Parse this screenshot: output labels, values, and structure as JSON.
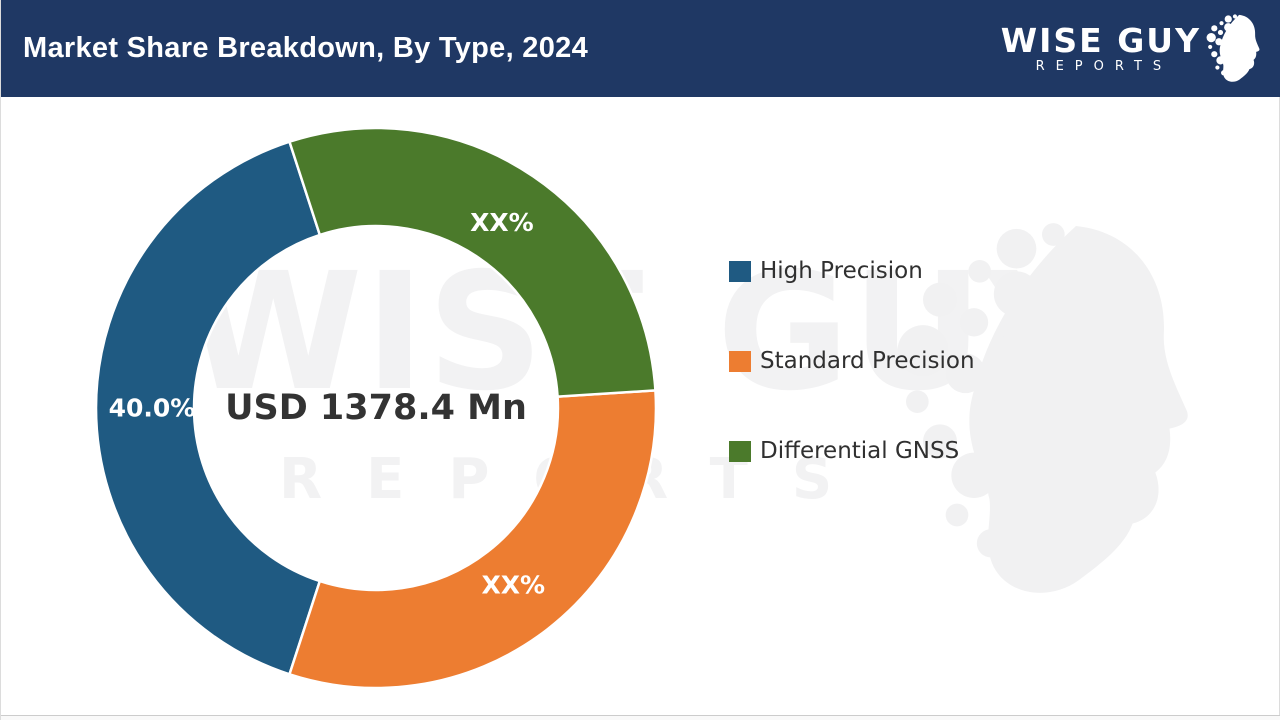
{
  "header": {
    "title": "Market Share Breakdown, By Type, 2024",
    "bg_color": "#1f3864",
    "logo": {
      "line1": "WISE GUY",
      "line2": "REPORTS"
    }
  },
  "watermark": {
    "line1": "WISE GUY",
    "line2": "REPORTS"
  },
  "chart_data": {
    "type": "pie",
    "subtype": "donut",
    "title": "Market Share Breakdown, By Type, 2024",
    "center_label": "USD 1378.4 Mn",
    "categories": [
      "High Precision",
      "Standard Precision",
      "Differential GNSS"
    ],
    "values": [
      40,
      31,
      29
    ],
    "slice_labels": [
      "40.0%",
      "XX%",
      "XX%"
    ],
    "colors": [
      "#1f5a82",
      "#ed7d31",
      "#4b7a2b"
    ],
    "start_angle_deg": 108,
    "direction": "counterclockwise",
    "inner_radius_ratio": 0.65,
    "legend_position": "right",
    "label_text_color": "#ffffff",
    "center_text_color": "#333333"
  },
  "legend": {
    "items": [
      {
        "label": "High Precision"
      },
      {
        "label": "Standard Precision"
      },
      {
        "label": "Differential GNSS"
      }
    ]
  }
}
